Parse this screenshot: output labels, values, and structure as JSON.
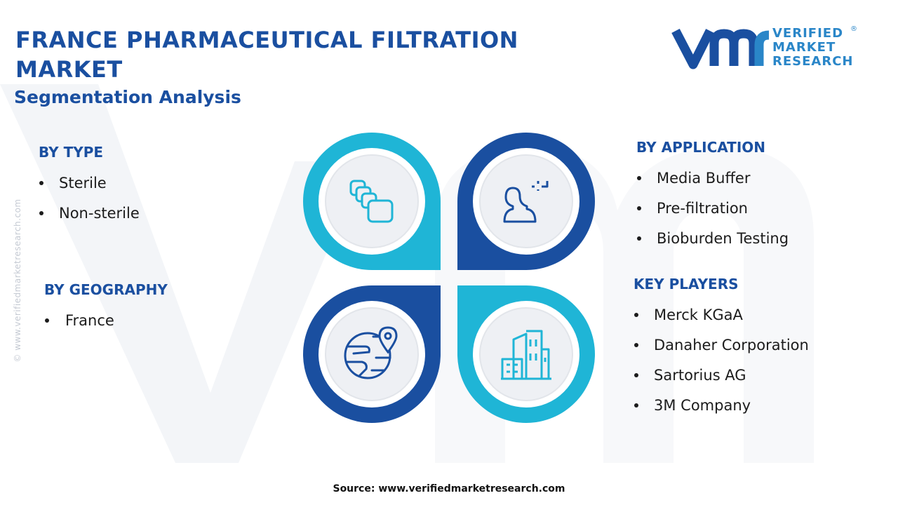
{
  "header": {
    "title": "FRANCE PHARMACEUTICAL FILTRATION MARKET",
    "subtitle": "Segmentation Analysis"
  },
  "logo": {
    "lines": [
      "VERIFIED",
      "MARKET",
      "RESEARCH"
    ],
    "mark": "®"
  },
  "sections": [
    {
      "heading": "BY TYPE",
      "items": [
        "Sterile",
        "Non-sterile"
      ]
    },
    {
      "heading": "BY GEOGRAPHY",
      "items": [
        "France"
      ]
    },
    {
      "heading": "BY APPLICATION",
      "items": [
        "Media Buffer",
        "Pre-filtration",
        "Bioburden Testing"
      ]
    },
    {
      "heading": "KEY PLAYERS",
      "items": [
        "Merck KGaA",
        "Danaher Corporation",
        "Sartorius AG",
        "3M Company"
      ]
    }
  ],
  "watermark": "© www.verifiedmarketresearch.com",
  "footer": {
    "source": "Source: www.verifiedmarketresearch.com"
  }
}
